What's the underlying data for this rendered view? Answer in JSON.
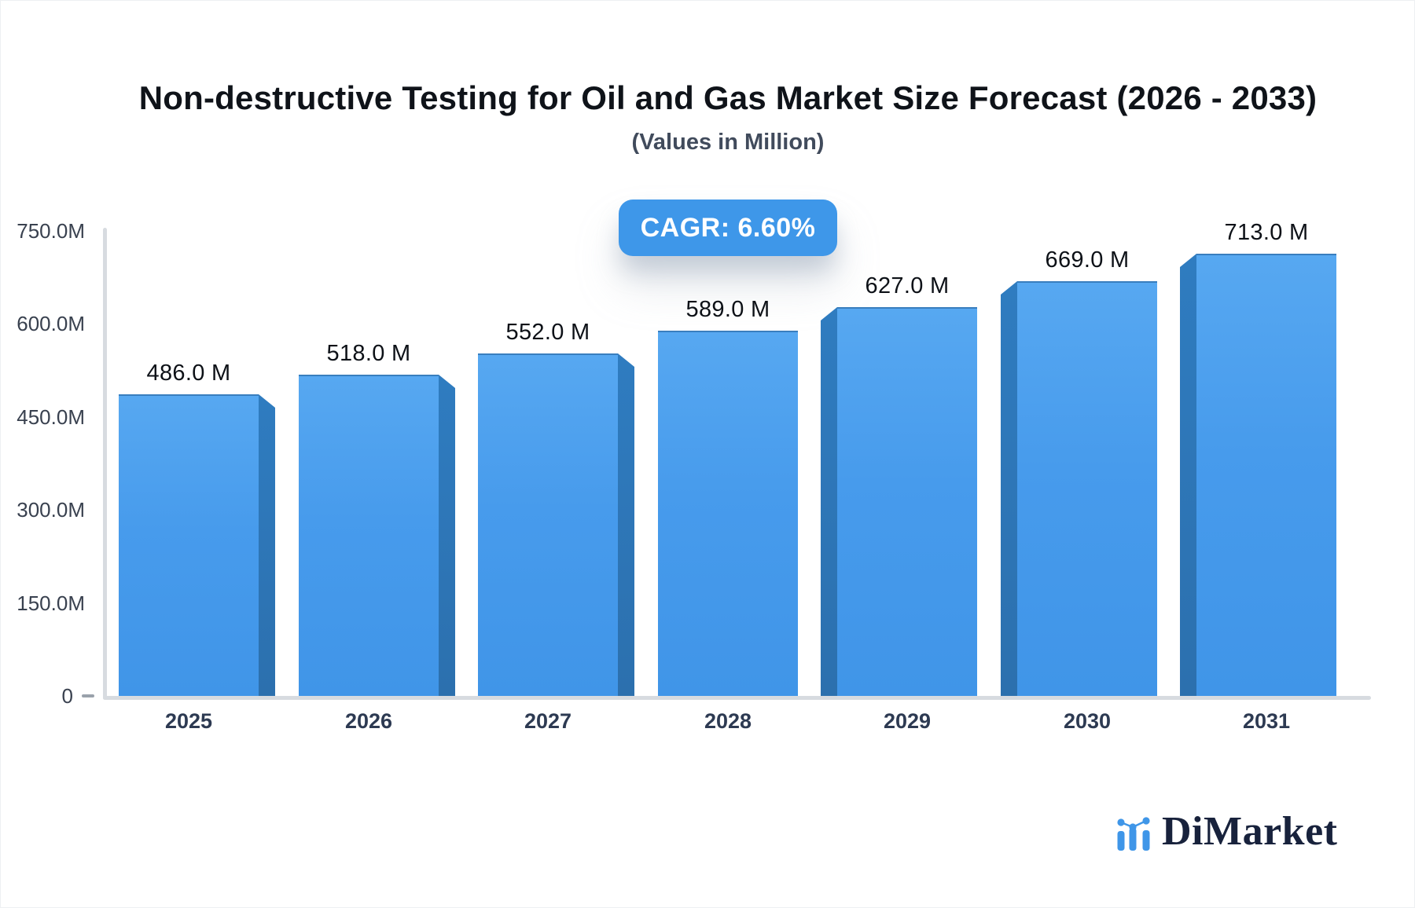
{
  "title": "Non-destructive Testing for Oil and Gas Market Size Forecast (2026 - 2033)",
  "subtitle": "(Values in Million)",
  "cagr": {
    "label": "CAGR: 6.60%",
    "percent": 6.6
  },
  "brand": {
    "name": "DiMarket",
    "icon": "mini-bar-chart-icon"
  },
  "colors": {
    "bar_face": "#4A9FEE",
    "bar_face_top": "#57A8F1",
    "bar_face_bottom": "#4095E8",
    "bar_side": "#2E77BA",
    "badge_blue": "#3E97E9",
    "axis_gray": "#D7DBE0",
    "brand_blue": "#3F96E8",
    "brand_text": "#18223C"
  },
  "chart_data": {
    "type": "bar",
    "title": "Non-destructive Testing for Oil and Gas Market Size Forecast (2026 - 2033)",
    "subtitle": "(Values in Million)",
    "unit": "Million",
    "categories": [
      "2025",
      "2026",
      "2027",
      "2028",
      "2029",
      "2030",
      "2031"
    ],
    "values": [
      486.0,
      518.0,
      552.0,
      589.0,
      627.0,
      669.0,
      713.0
    ],
    "value_labels": [
      "486.0 M",
      "518.0 M",
      "552.0 M",
      "589.0 M",
      "627.0 M",
      "669.0 M",
      "713.0 M"
    ],
    "y_ticks": [
      "750.0M",
      "600.0M",
      "450.0M",
      "300.0M",
      "150.0M",
      "0"
    ],
    "y_tick_values": [
      750,
      600,
      450,
      300,
      150,
      0
    ],
    "ylim": [
      0,
      750
    ],
    "xlabel": "",
    "ylabel": "",
    "grid": false,
    "legend": false,
    "bar_style": "3d-perspective",
    "cagr_percent": 6.6
  }
}
